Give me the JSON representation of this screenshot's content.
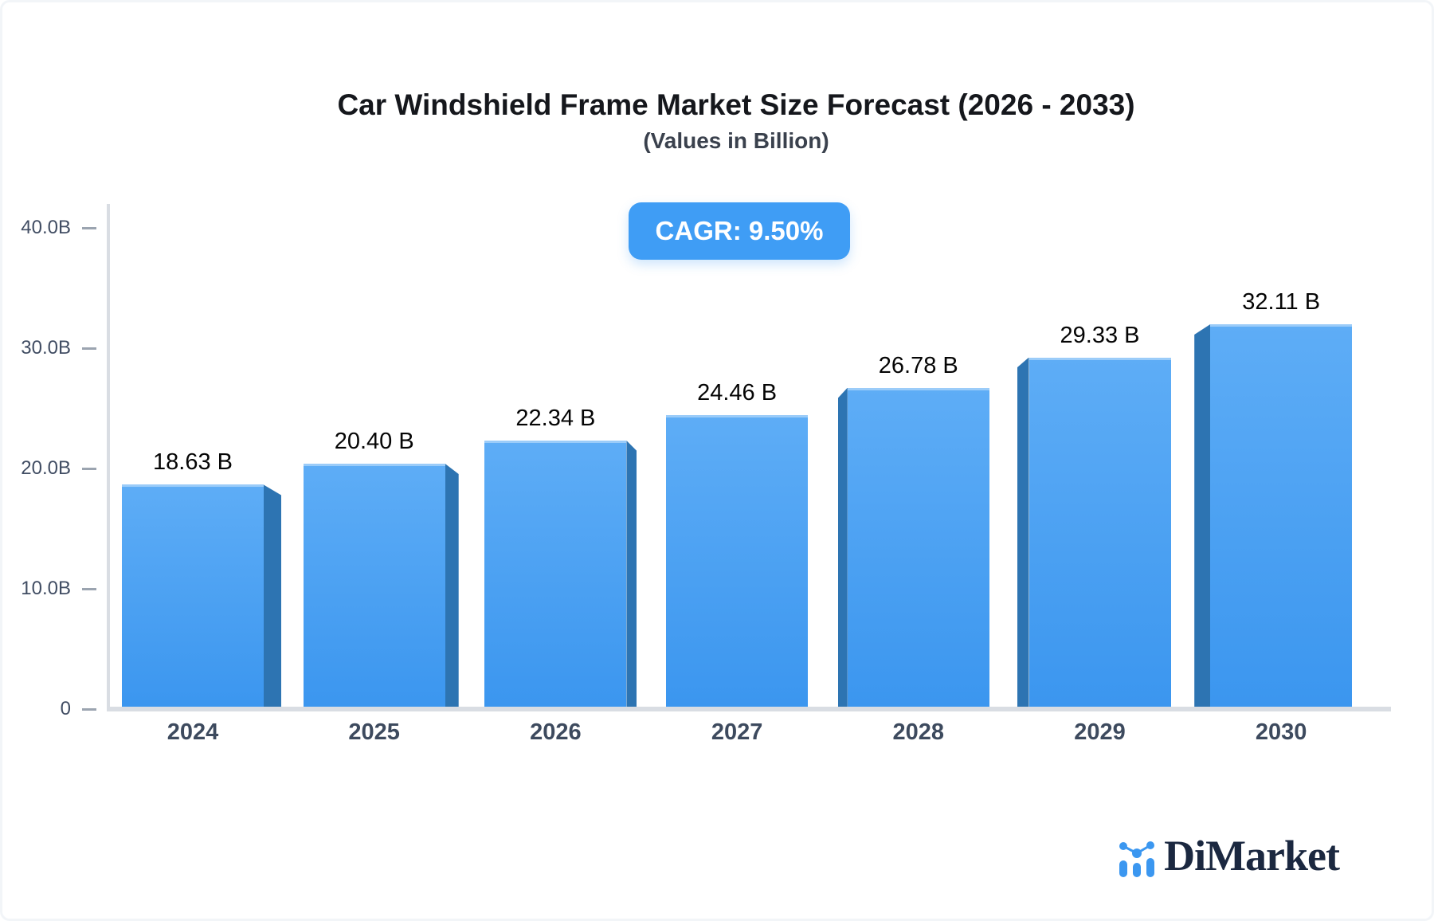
{
  "header": {
    "title": "Car Windshield Frame Market Size Forecast (2026 - 2033)",
    "subtitle": "(Values in Billion)",
    "cagr_badge": "CAGR: 9.50%"
  },
  "chart_data": {
    "type": "bar",
    "title": "Car Windshield Frame Market Size Forecast (2026 - 2033)",
    "subtitle": "(Values in Billion)",
    "cagr_percent": 9.5,
    "categories": [
      "2024",
      "2025",
      "2026",
      "2027",
      "2028",
      "2029",
      "2030"
    ],
    "values": [
      18.63,
      20.4,
      22.34,
      24.46,
      26.78,
      29.33,
      32.11
    ],
    "bar_labels": [
      "18.63 B",
      "20.40 B",
      "22.34 B",
      "24.46 B",
      "26.78 B",
      "29.33 B",
      "32.11 B"
    ],
    "y_tick_labels": [
      "40.0B",
      "30.0B",
      "20.0B",
      "10.0B",
      "0"
    ],
    "y_tick_values": [
      40,
      30,
      20,
      10,
      0
    ],
    "ylim": [
      0,
      40
    ],
    "xlabel": "",
    "ylabel": "",
    "grid": false,
    "legend": false,
    "bar_style": "3d-extruded"
  },
  "colors": {
    "bar_face_top": "#5eadf6",
    "bar_face_bottom": "#3b96ef",
    "bar_side": "#2d74b2",
    "badge_blue": "#3f9df5",
    "axis_gray": "#d9dde3",
    "tick_dash_gray": "#9ba4b0",
    "label_slate": "#3d4a5e",
    "title_black": "#15171c",
    "brand_navy": "#1b2840",
    "brand_blue": "#3b97f0"
  },
  "footer": {
    "logo_text": "DiMarket"
  }
}
